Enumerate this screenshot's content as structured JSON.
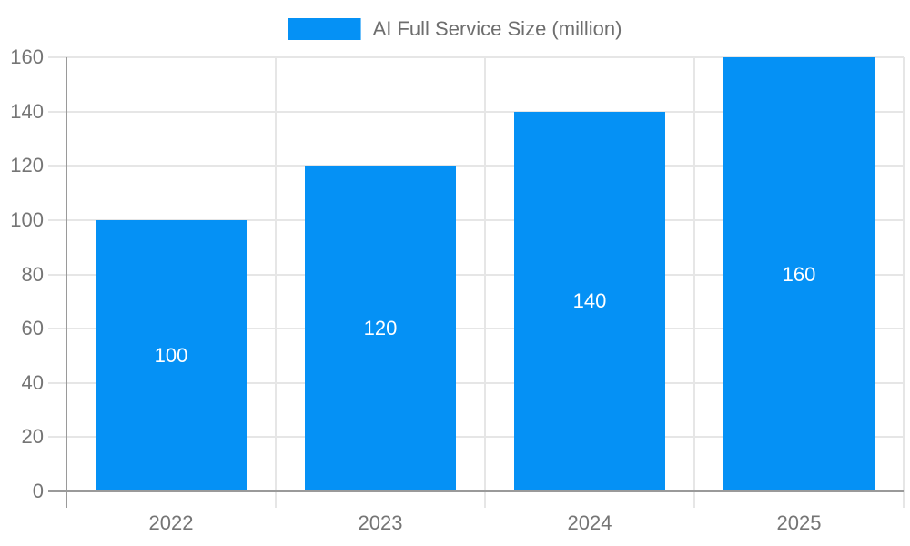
{
  "chart_data": {
    "type": "bar",
    "categories": [
      "2022",
      "2023",
      "2024",
      "2025"
    ],
    "values": [
      100,
      120,
      140,
      160
    ],
    "series_name": "AI Full Service Size (million)",
    "title": "",
    "xlabel": "",
    "ylabel": "",
    "ylim": [
      0,
      160
    ],
    "yticks": [
      0,
      20,
      40,
      60,
      80,
      100,
      120,
      140,
      160
    ],
    "grid": true,
    "legend_position": "top-center",
    "bar_value_labels": [
      "100",
      "120",
      "140",
      "160"
    ],
    "colors": {
      "bar": "#0591f5",
      "bar_value_label": "#ffffff",
      "grid_line": "#e6e6e6",
      "axis_line": "#9a9a9a",
      "tick_label": "#757575",
      "legend_text": "#6e6e6e",
      "background": "#ffffff"
    }
  }
}
